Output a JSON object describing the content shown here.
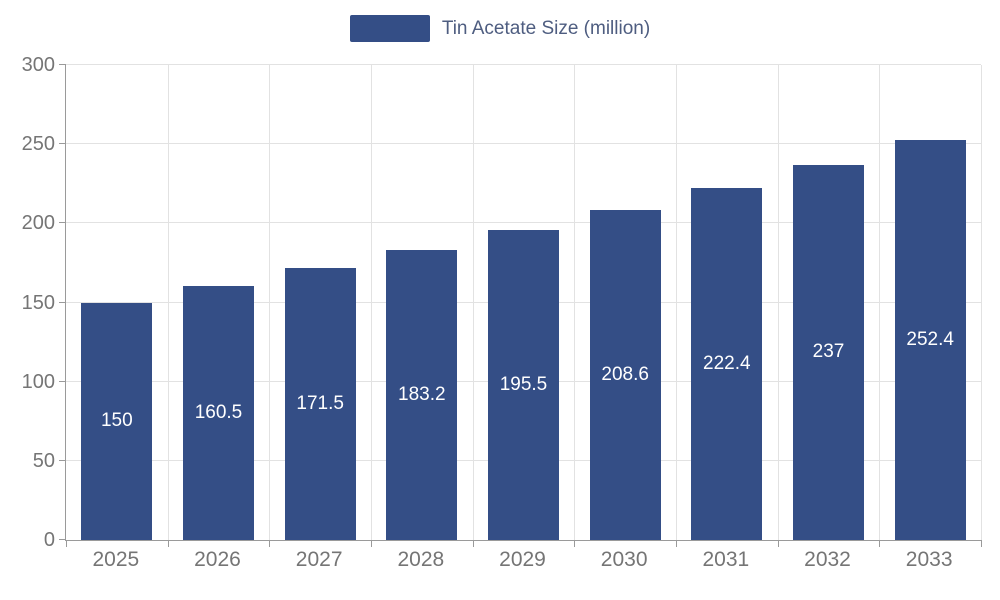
{
  "legend": {
    "label": "Tin Acetate Size (million)",
    "text_color": "#4e5d80"
  },
  "chart_data": {
    "type": "bar",
    "title": "Tin Acetate Size (million)",
    "categories": [
      "2025",
      "2026",
      "2027",
      "2028",
      "2029",
      "2030",
      "2031",
      "2032",
      "2033"
    ],
    "values": [
      150,
      160.5,
      171.5,
      183.2,
      195.5,
      208.6,
      222.4,
      237,
      252.4
    ],
    "value_labels": [
      "150",
      "160.5",
      "171.5",
      "183.2",
      "195.5",
      "208.6",
      "222.4",
      "237",
      "252.4"
    ],
    "xlabel": "",
    "ylabel": "",
    "ylim": [
      0,
      300
    ],
    "yticks": [
      0,
      50,
      100,
      150,
      200,
      250,
      300
    ],
    "bar_color": "#344e86",
    "value_label_color": "#ffffff",
    "grid": true,
    "legend_position": "top"
  }
}
